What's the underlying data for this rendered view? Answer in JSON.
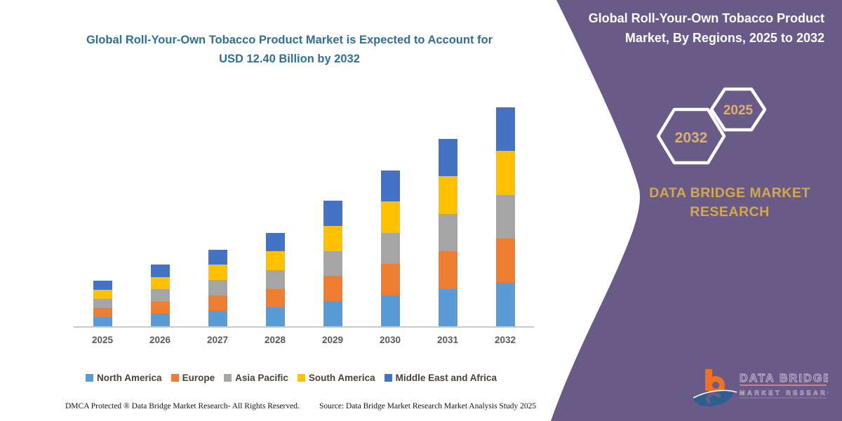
{
  "main_title": {
    "lines": [
      "Global Roll-Your-Own Tobacco Product Market is Expected to",
      "Account for USD 12.40 Billion by 2032"
    ],
    "color": "#2F6F93"
  },
  "chart_data": {
    "type": "bar",
    "subtype": "stacked-bar",
    "title": "Global Roll-Your-Own Tobacco Product Market is Expected to Account for USD 12.40 Billion by 2032",
    "unit": "USD Billion",
    "categories": [
      "2025",
      "2026",
      "2027",
      "2028",
      "2029",
      "2030",
      "2031",
      "2032"
    ],
    "series": [
      {
        "name": "North America",
        "color": "#5B9BD5",
        "values": [
          0.52,
          0.7,
          0.87,
          1.06,
          1.42,
          1.76,
          2.12,
          2.48
        ]
      },
      {
        "name": "Europe",
        "color": "#ED7D31",
        "values": [
          0.52,
          0.7,
          0.87,
          1.06,
          1.42,
          1.76,
          2.12,
          2.48
        ]
      },
      {
        "name": "Asia Pacific",
        "color": "#A5A5A5",
        "values": [
          0.52,
          0.7,
          0.87,
          1.06,
          1.42,
          1.76,
          2.12,
          2.48
        ]
      },
      {
        "name": "South America",
        "color": "#FFC000",
        "values": [
          0.52,
          0.7,
          0.87,
          1.06,
          1.42,
          1.76,
          2.12,
          2.48
        ]
      },
      {
        "name": "Middle East and Africa",
        "color": "#4472C4",
        "values": [
          0.52,
          0.7,
          0.87,
          1.06,
          1.42,
          1.76,
          2.12,
          2.48
        ]
      }
    ],
    "totals": [
      2.62,
      3.5,
      4.37,
      5.29,
      7.08,
      8.82,
      10.61,
      12.4
    ],
    "ylim": [
      0,
      12.4
    ],
    "grid": false,
    "y_axis_visible": false,
    "legend_position": "bottom",
    "axis_label_color": "#595959",
    "legend_text_color": "#4A4335"
  },
  "footer": {
    "dmca": "DMCA Protected ® Data Bridge Market Research-  All Rights Reserved.",
    "source": "Source: Data Bridge Market Research  Market Analysis Study 2025"
  },
  "side_panel": {
    "background": "#6A5A87",
    "title_lines": [
      "Global Roll-Your-Own Tobacco",
      "Product Market, By Regions, 2025 to",
      "2032"
    ],
    "title_color": "#FFFFFF",
    "hexagons": [
      {
        "label": "2032"
      },
      {
        "label": "2025"
      }
    ],
    "hexagon_text_color": "#D9B273",
    "brand_text": "DATA BRIDGE MARKET RESEARCH",
    "brand_text_color": "#D4A94E"
  },
  "logo": {
    "line1": "DATA BRIDGE",
    "line2": "MARKET RESEARCH",
    "orange": "#ED7221",
    "blue": "#2F5F8F"
  }
}
